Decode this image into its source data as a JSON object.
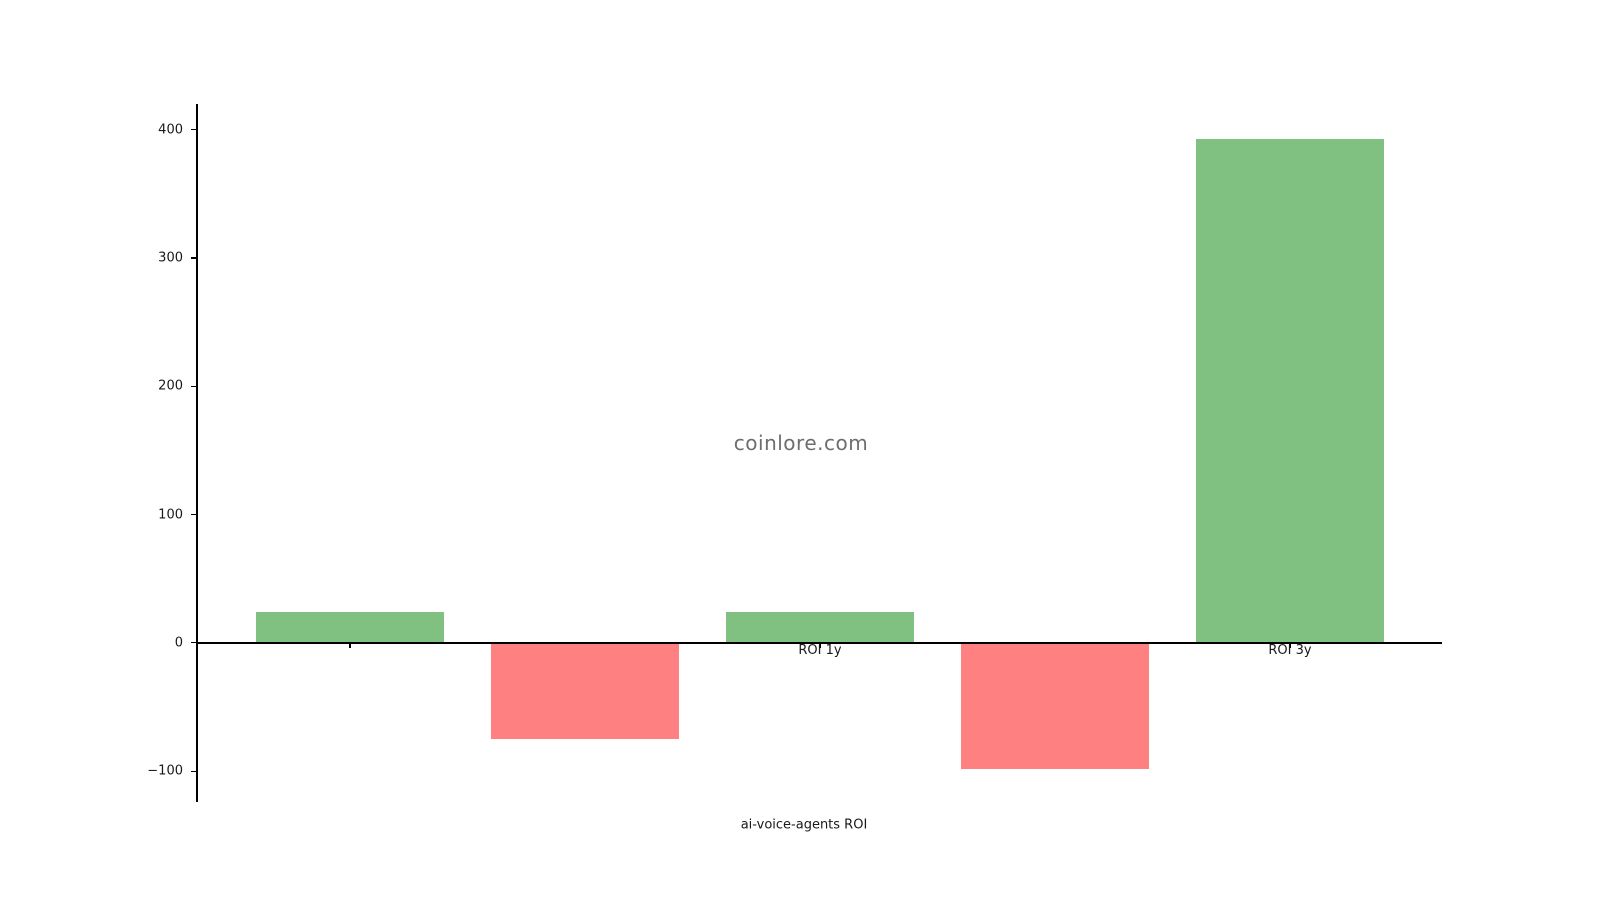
{
  "watermark": {
    "text": "coinlore.com",
    "color": "#6e6e6e"
  },
  "chart_data": {
    "type": "bar",
    "title": "",
    "xlabel": "ai-voice-agents ROI",
    "ylabel": "",
    "categories": [
      "",
      "",
      "ROI 1y",
      "",
      "ROI 3y"
    ],
    "values": [
      24,
      -75,
      24,
      -98,
      393
    ],
    "series": [
      {
        "name": "ROI",
        "values": [
          24,
          -75,
          24,
          -98,
          393
        ]
      }
    ],
    "bar_colors": [
      "#80c080",
      "#ff8080",
      "#80c080",
      "#ff8080",
      "#80c080"
    ],
    "positive_color": "#80c080",
    "negative_color": "#ff8080",
    "yticks": [
      {
        "value": 400,
        "label": "400"
      },
      {
        "value": 300,
        "label": "300"
      },
      {
        "value": 200,
        "label": "200"
      },
      {
        "value": 100,
        "label": "100"
      },
      {
        "value": 0,
        "label": "0"
      },
      {
        "value": -100,
        "label": "−100"
      }
    ],
    "ylim": [
      -124,
      420
    ],
    "grid": false,
    "legend": null,
    "axis_color": "#000000",
    "tick_label_color": "#1a1a1a",
    "visible_xtick_indices": [
      0,
      2,
      4
    ]
  }
}
